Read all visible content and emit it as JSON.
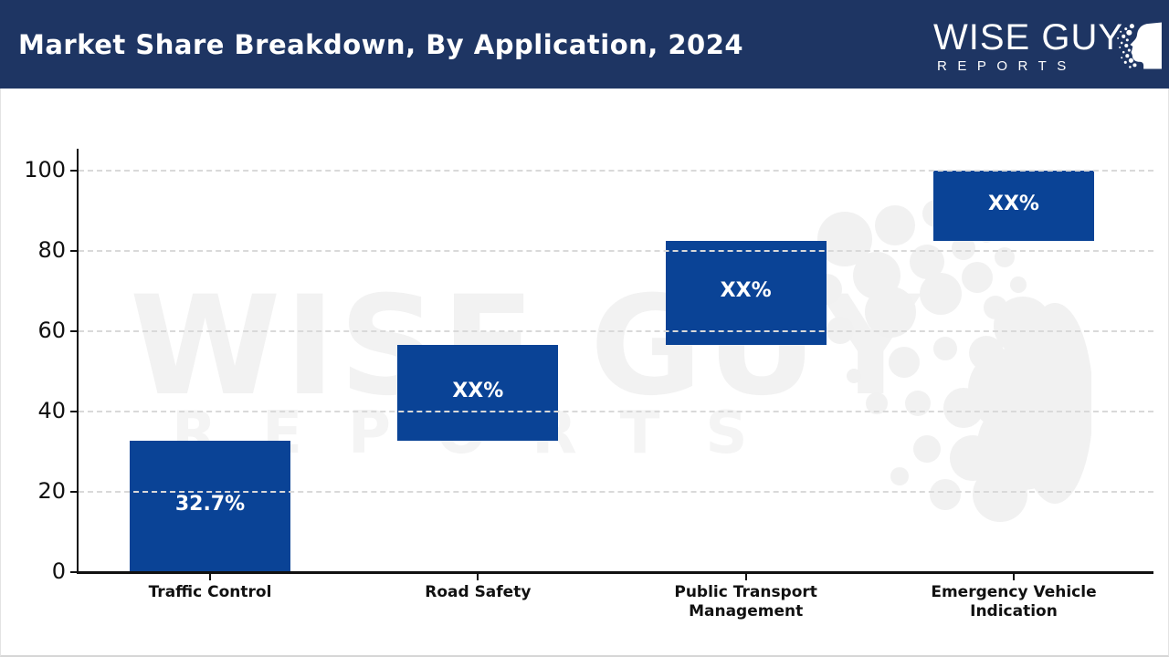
{
  "header": {
    "title": "Market Share Breakdown, By Application, 2024",
    "bg_color": "#1e3563",
    "logo": {
      "line1": "WISE GUY",
      "line2": "REPORTS",
      "head_icon": "dotted-face-profile"
    }
  },
  "watermark": {
    "line1": "WISE GUY",
    "line2": "REPORTS",
    "head_icon": "dotted-face-profile"
  },
  "chart_data": {
    "type": "bar",
    "subtype": "waterfall",
    "title": "Market Share Breakdown, By Application, 2024",
    "categories": [
      "Traffic Control",
      "Road Safety",
      "Public Transport Management",
      "Emergency Vehicle Indication"
    ],
    "series": [
      {
        "name": "Market Share",
        "segments": [
          {
            "category": "Traffic Control",
            "start": 0,
            "end": 32.7,
            "label": "32.7%"
          },
          {
            "category": "Road Safety",
            "start": 32.7,
            "end": 56.5,
            "label": "XX%"
          },
          {
            "category": "Public Transport Management",
            "start": 56.5,
            "end": 82.5,
            "label": "XX%"
          },
          {
            "category": "Emergency Vehicle Indication",
            "start": 82.5,
            "end": 100,
            "label": "XX%"
          }
        ]
      }
    ],
    "xlabel": "",
    "ylabel": "",
    "ylim": [
      0,
      100
    ],
    "y_ticks": [
      0,
      20,
      40,
      60,
      80,
      100
    ],
    "grid": "horizontal dashed, drawn above bars",
    "legend": "none",
    "bar_color": "#0a4396",
    "grid_color": "#d9d9d9",
    "axis_color": "#111111",
    "bar_label_color": "#ffffff"
  }
}
